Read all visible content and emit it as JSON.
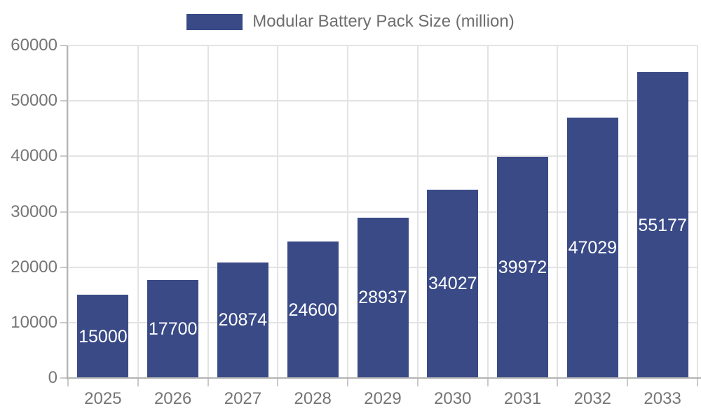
{
  "chart_data": {
    "type": "bar",
    "title": "Modular Battery Pack Size (million)",
    "categories": [
      "2025",
      "2026",
      "2027",
      "2028",
      "2029",
      "2030",
      "2031",
      "2032",
      "2033"
    ],
    "series": [
      {
        "name": "Modular Battery Pack Size (million)",
        "values": [
          15000,
          17700,
          20874,
          24600,
          28937,
          34027,
          39972,
          47029,
          55177
        ],
        "color": "#3A4A87"
      }
    ],
    "xlabel": "",
    "ylabel": "",
    "ylim": [
      0,
      60000
    ],
    "yticks": [
      0,
      10000,
      20000,
      30000,
      40000,
      50000,
      60000
    ],
    "grid": true,
    "legend_position": "top",
    "value_labels": "inside-center",
    "colors": {
      "bar": "#3A4A87",
      "value_label": "#FFFFFF",
      "axis_label": "#757575",
      "legend_label": "#6E6E6E",
      "gridline": "#E3E3E3",
      "axis_line": "#B3B3B3",
      "tick": "#C9C9C9",
      "background": "#FFFFFF"
    }
  }
}
